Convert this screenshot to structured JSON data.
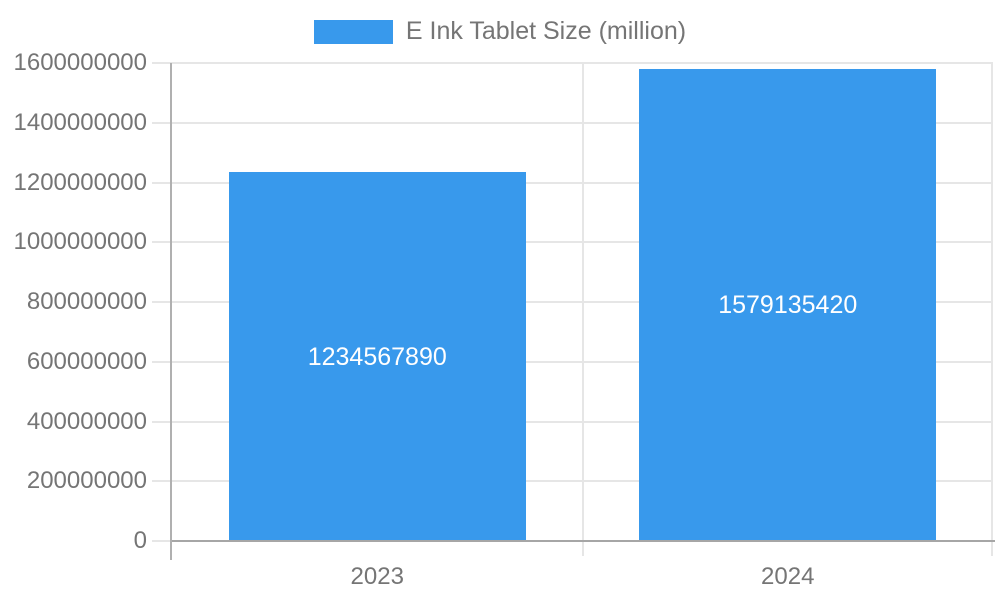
{
  "chart_data": {
    "type": "bar",
    "title": "E Ink Tablet Size (million)",
    "legend": {
      "label": "E Ink Tablet Size (million)",
      "position": "top"
    },
    "categories": [
      "2023",
      "2024"
    ],
    "series": [
      {
        "name": "E Ink Tablet Size (million)",
        "values": [
          1234567890,
          1579135420
        ]
      }
    ],
    "value_labels": [
      "1234567890",
      "1579135420"
    ],
    "xlabel": "",
    "ylabel": "",
    "ylim": [
      0,
      1600000000
    ],
    "y_ticks": [
      0,
      200000000,
      400000000,
      600000000,
      800000000,
      1000000000,
      1200000000,
      1400000000,
      1600000000
    ],
    "y_tick_labels": [
      "0",
      "200000000",
      "400000000",
      "600000000",
      "800000000",
      "1000000000",
      "1200000000",
      "1400000000",
      "1600000000"
    ],
    "grid": true,
    "colors": {
      "bar": "#3899ec",
      "bar_label": "#ffffff",
      "grid": "#e6e6e6",
      "axis": "#a6a6a6",
      "axis_y": "#b0b0b0",
      "text": "#757575"
    }
  }
}
